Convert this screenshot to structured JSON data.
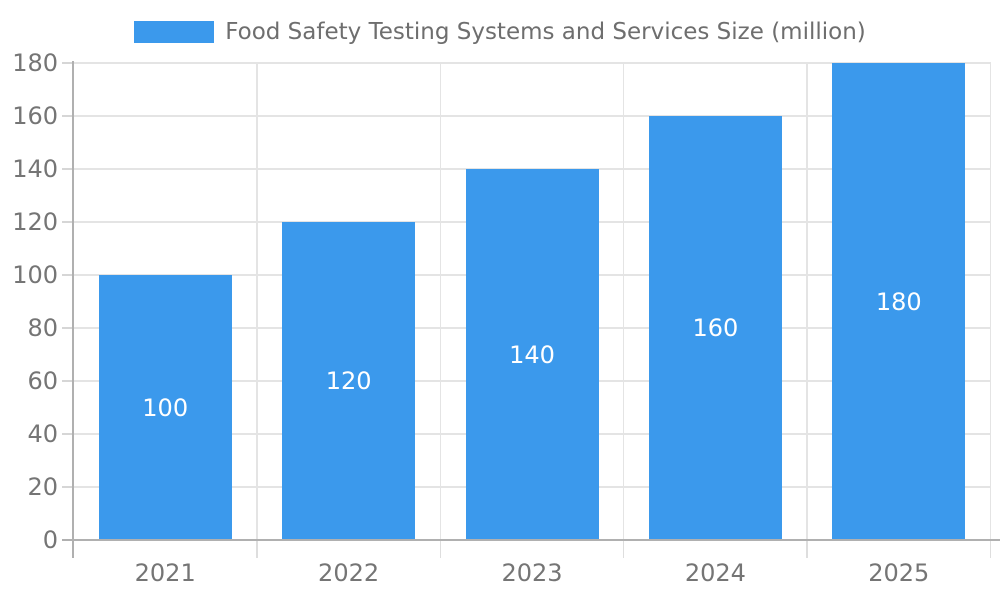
{
  "chart_data": {
    "type": "bar",
    "title": "Food Safety Testing Systems and Services Size (million)",
    "legend_entries": [
      "Food Safety Testing Systems and Services Size (million)"
    ],
    "legend_position": "top",
    "categories": [
      "2021",
      "2022",
      "2023",
      "2024",
      "2025"
    ],
    "values": [
      100,
      120,
      140,
      160,
      180
    ],
    "value_labels": [
      "100",
      "120",
      "140",
      "160",
      "180"
    ],
    "xlabel": "",
    "ylabel": "",
    "ylim": [
      0,
      180
    ],
    "ytick_step": 20,
    "yticks": [
      0,
      20,
      40,
      60,
      80,
      100,
      120,
      140,
      160,
      180
    ],
    "grid": true,
    "colors": {
      "bar": "#3B99EC",
      "grid": "#e4e4e4",
      "axis": "#b0b0b0",
      "tick_text": "#757575",
      "legend_text": "#6e6e6e",
      "value_label": "#ffffff",
      "background": "#ffffff"
    }
  }
}
